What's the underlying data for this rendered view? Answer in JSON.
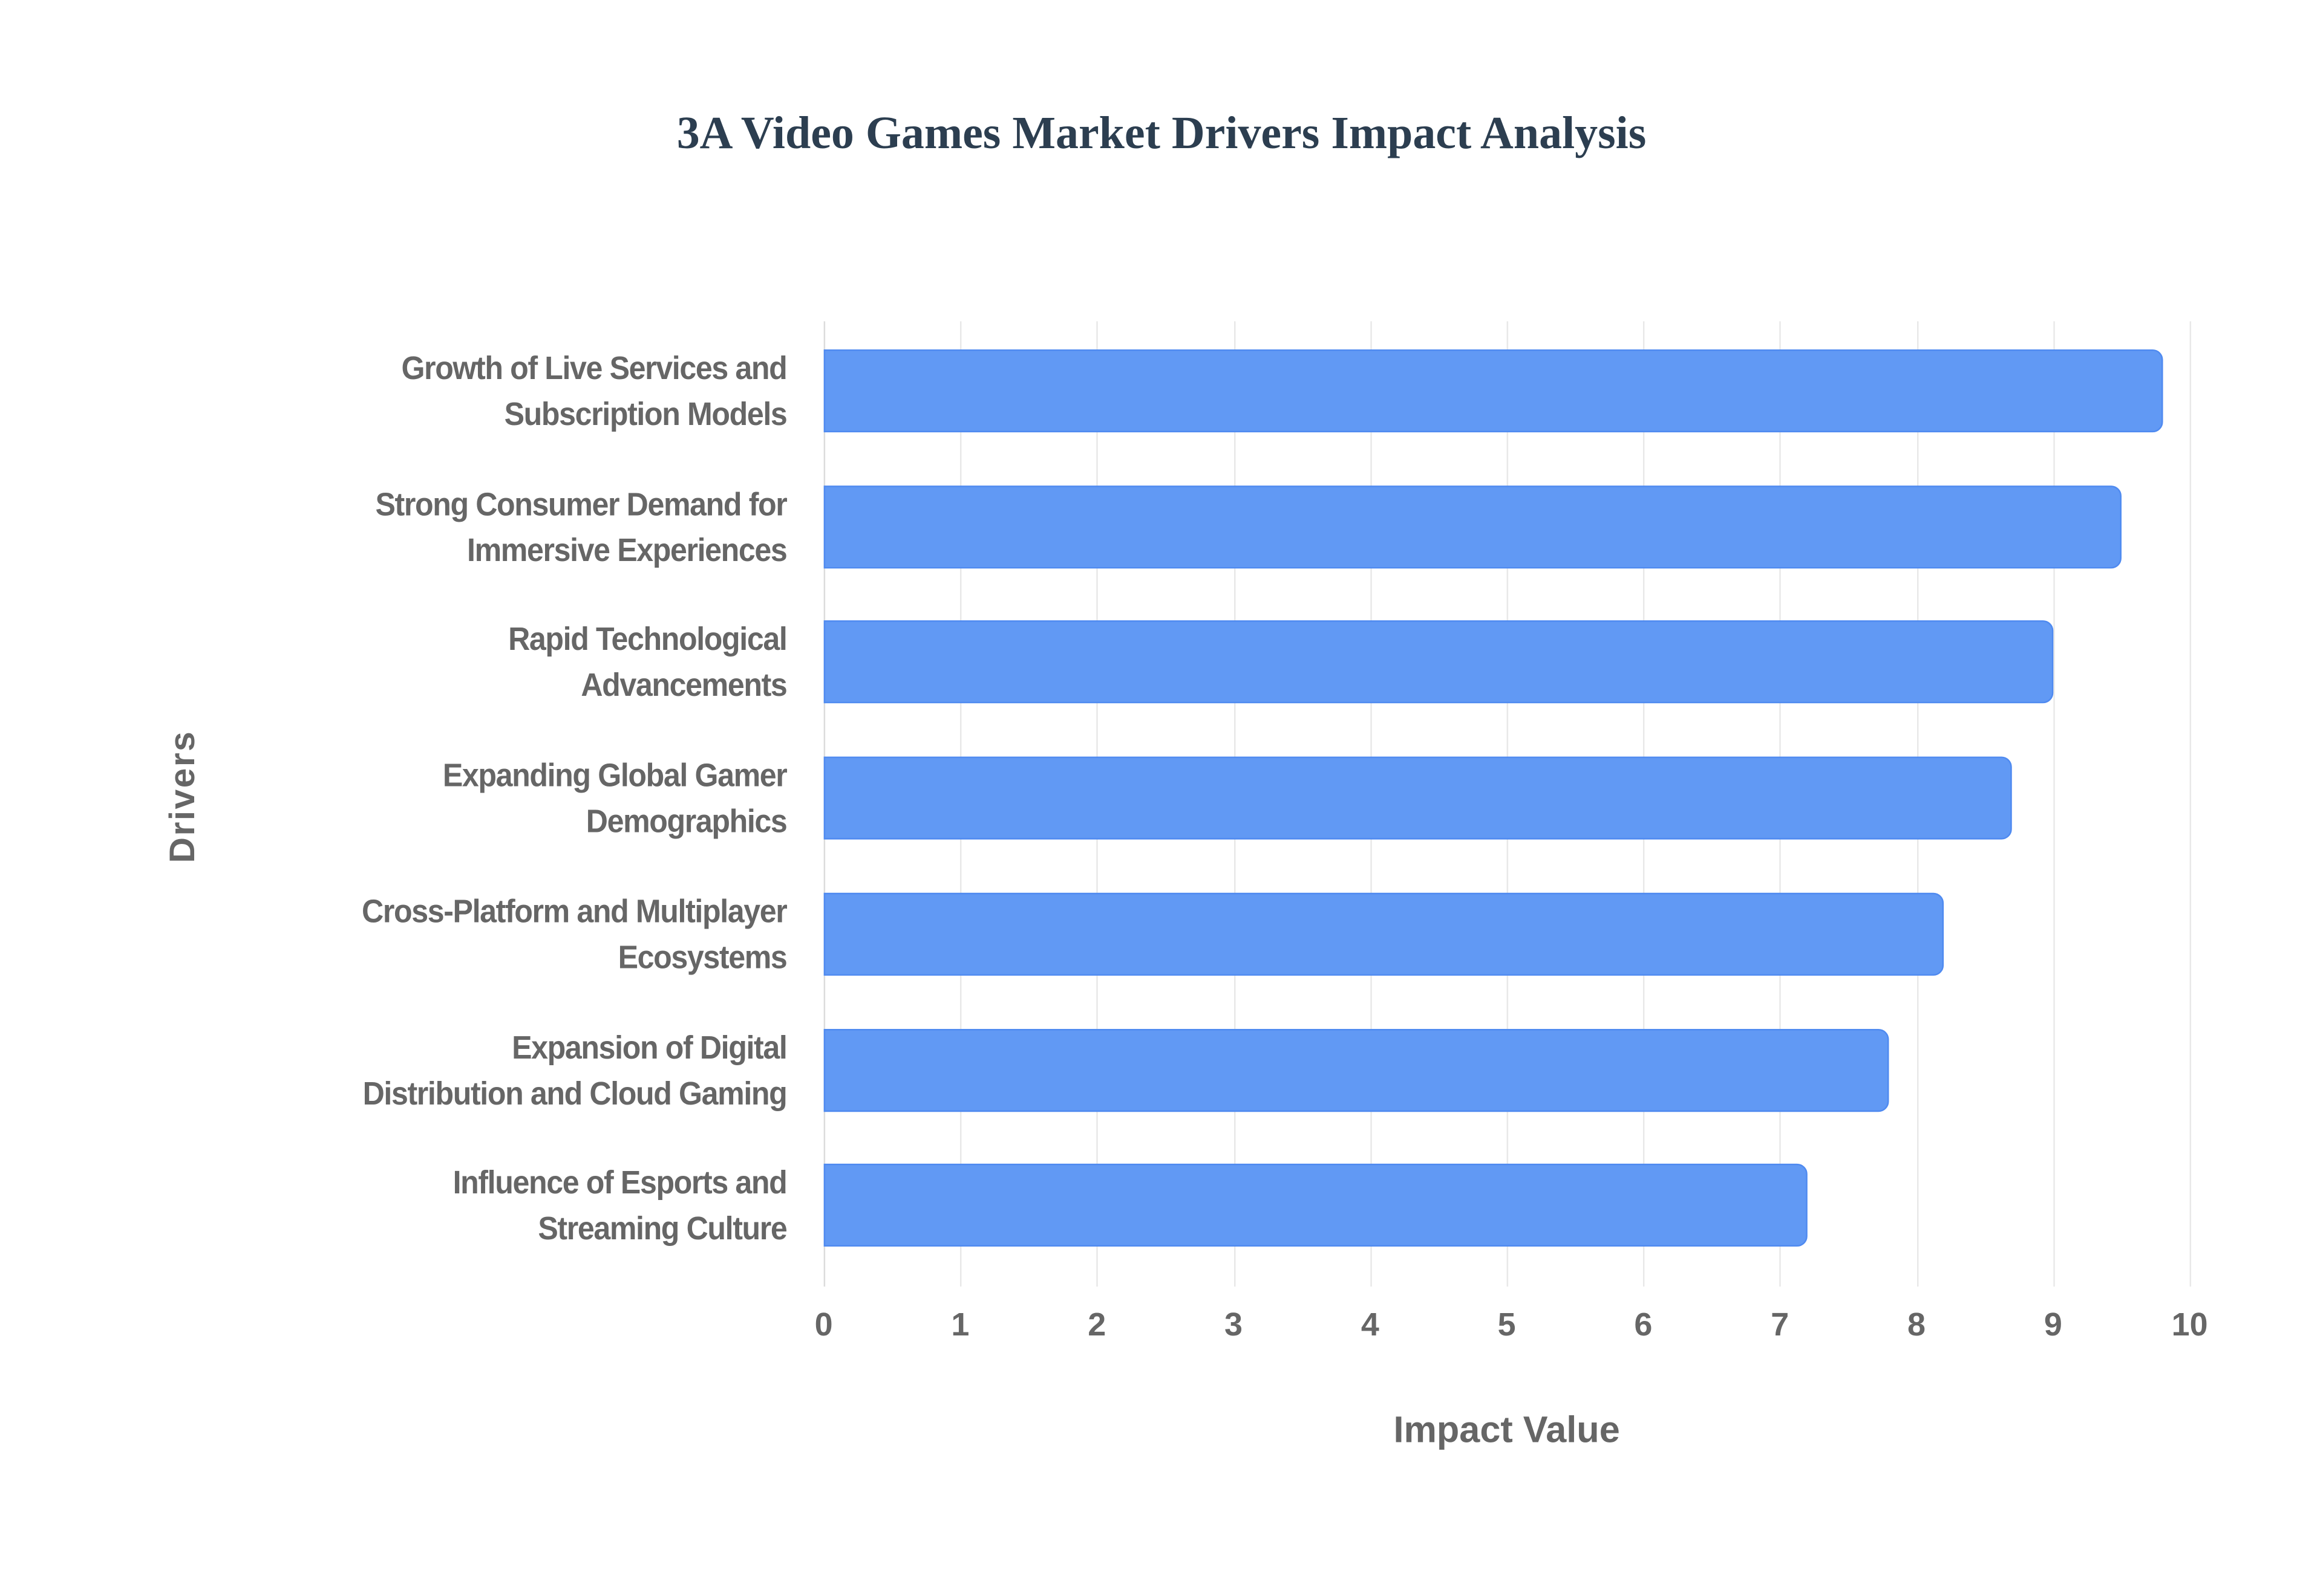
{
  "chart_data": {
    "type": "bar",
    "orientation": "horizontal",
    "title": "3A Video Games Market Drivers Impact Analysis",
    "xlabel": "Impact Value",
    "ylabel": "Drivers",
    "xlim": [
      0,
      10
    ],
    "x_ticks": [
      "0",
      "1",
      "2",
      "3",
      "4",
      "5",
      "6",
      "7",
      "8",
      "9",
      "10"
    ],
    "grid": true,
    "legend": "none",
    "bar_color": "#6199f4",
    "categories": [
      "Growth of Live Services and Subscription Models",
      "Strong Consumer Demand for Immersive Experiences",
      "Rapid Technological Advancements",
      "Expanding Global Gamer Demographics",
      "Cross-Platform and Multiplayer Ecosystems",
      "Expansion of Digital Distribution and Cloud Gaming",
      "Influence of Esports and Streaming Culture"
    ],
    "category_lines": [
      [
        "Growth of Live Services and",
        "Subscription Models"
      ],
      [
        "Strong Consumer Demand for",
        "Immersive Experiences"
      ],
      [
        "Rapid Technological",
        "Advancements"
      ],
      [
        "Expanding Global Gamer",
        "Demographics"
      ],
      [
        "Cross-Platform and Multiplayer",
        "Ecosystems"
      ],
      [
        "Expansion of Digital",
        "Distribution and Cloud Gaming"
      ],
      [
        "Influence of Esports and",
        "Streaming Culture"
      ]
    ],
    "values": [
      9.8,
      9.5,
      9.0,
      8.7,
      8.2,
      7.8,
      7.2
    ]
  }
}
